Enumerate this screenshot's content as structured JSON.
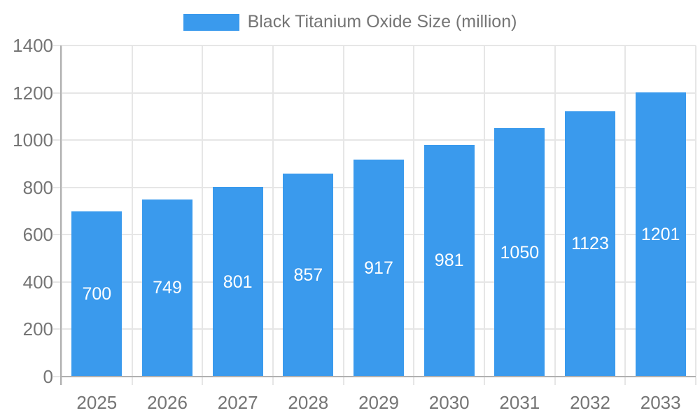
{
  "chart_data": {
    "type": "bar",
    "title": "",
    "legend": "Black Titanium Oxide Size (million)",
    "legend_position": "top",
    "categories": [
      "2025",
      "2026",
      "2027",
      "2028",
      "2029",
      "2030",
      "2031",
      "2032",
      "2033"
    ],
    "series": [
      {
        "name": "Black Titanium Oxide Size (million)",
        "values": [
          700,
          749,
          801,
          857,
          917,
          981,
          1050,
          1123,
          1201
        ]
      }
    ],
    "value_labels_shown": true,
    "xlabel": "",
    "ylabel": "",
    "ylim": [
      0,
      1400
    ],
    "yticks": [
      0,
      200,
      400,
      600,
      800,
      1000,
      1200,
      1400
    ],
    "grid": true,
    "colors": {
      "bar": "#3A9AED",
      "axis_text": "#757575",
      "grid_line": "#E6E6E6",
      "axis_line": "#B0B0B0",
      "value_label": "#FFFFFF",
      "background": "#FFFFFF"
    }
  }
}
